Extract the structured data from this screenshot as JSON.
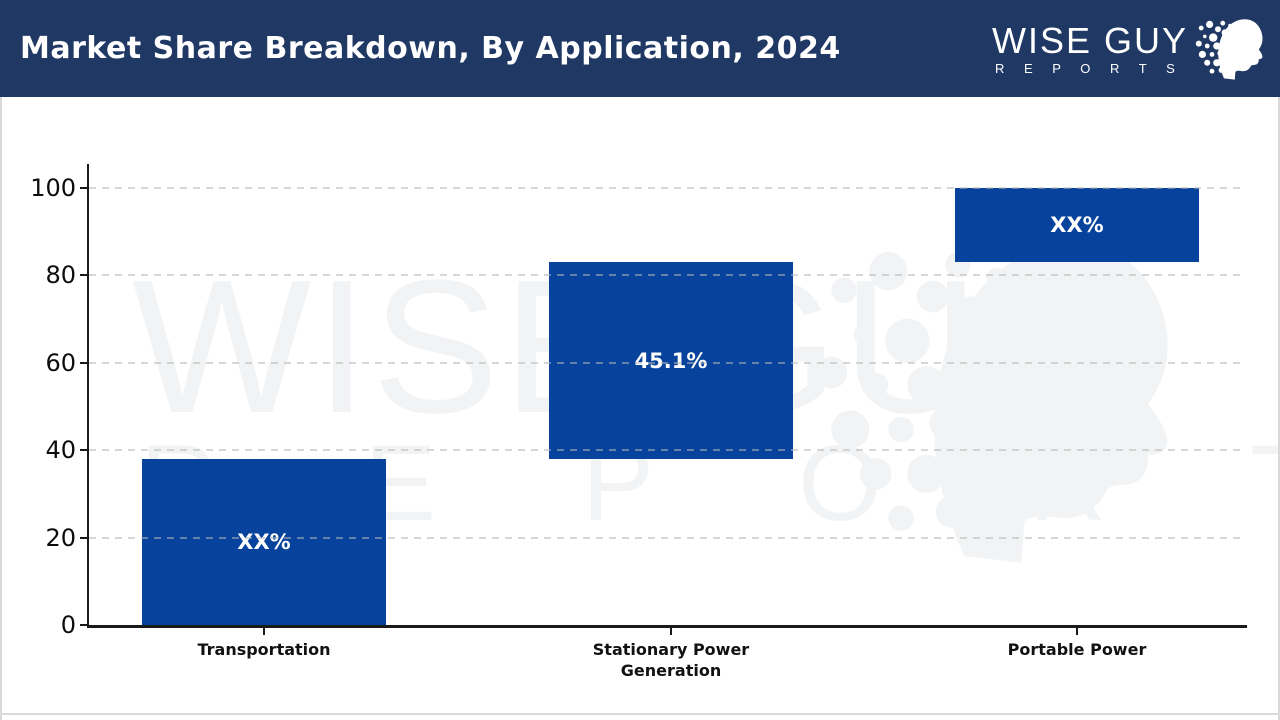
{
  "header": {
    "title": "Market Share Breakdown, By Application, 2024",
    "logo": {
      "line1": "WISE GUY",
      "line2": "R E P O R T S"
    }
  },
  "watermark": {
    "line1": "WISE GUY",
    "line2": "R E P O R T S"
  },
  "chart_data": {
    "type": "bar",
    "subtype": "waterfall-stacked-percentage",
    "title": "Market Share Breakdown, By Application, 2024",
    "categories": [
      {
        "lines": [
          "Transportation"
        ]
      },
      {
        "lines": [
          "Stationary Power",
          "Generation"
        ]
      },
      {
        "lines": [
          "Portable Power"
        ]
      }
    ],
    "bars": [
      {
        "category": "Transportation",
        "label": "XX%",
        "start": 0,
        "end": 37.9,
        "value_est": 37.9
      },
      {
        "category": "Stationary Power Generation",
        "label": "45.1%",
        "start": 37.9,
        "end": 83.0,
        "value_est": 45.1
      },
      {
        "category": "Portable Power",
        "label": "XX%",
        "start": 83.0,
        "end": 100.0,
        "value_est": 17.0
      }
    ],
    "yticks": [
      0,
      20,
      40,
      60,
      80,
      100
    ],
    "ylim": [
      0,
      105
    ],
    "ylabel": "",
    "xlabel": "",
    "bar_color": "#07439c",
    "header_color": "#203864",
    "grid": "horizontal-dashed-over-bars",
    "gridline_color": "#d9d9d9",
    "legend": "none"
  }
}
